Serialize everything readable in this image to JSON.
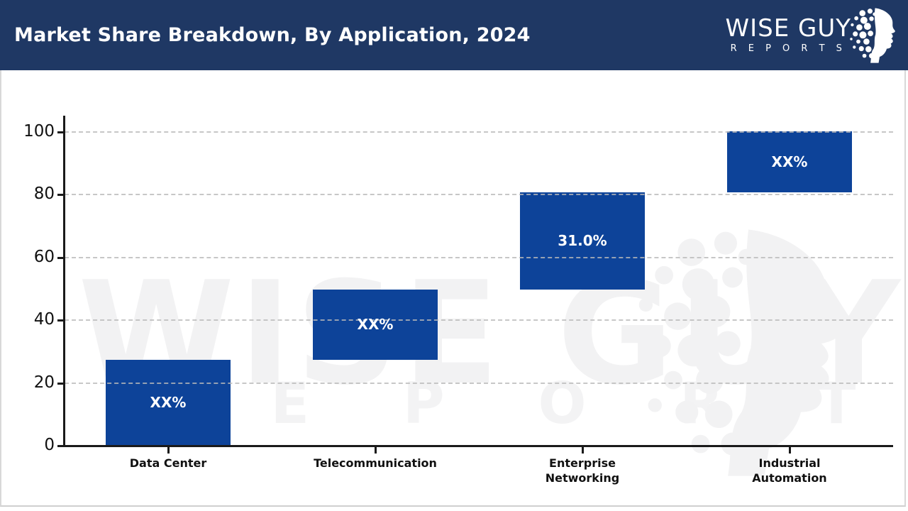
{
  "header": {
    "title": "Market Share Breakdown, By Application, 2024",
    "logo": {
      "primary": "WISE GUY",
      "secondary": "R E P O R T S"
    }
  },
  "watermark": {
    "primary": "WISE GUY",
    "secondary": "REPORTS"
  },
  "colors": {
    "header_bg": "#1F3864",
    "bar": "#0D4399",
    "title_text": "#FFFFFF",
    "axis": "#1A1A1A",
    "grid": "#D9D9D9",
    "watermark": "#F2F2F3"
  },
  "chart_data": {
    "type": "bar",
    "subtype": "waterfall-stacked-percentage",
    "title": "Market Share Breakdown, By Application, 2024",
    "categories": [
      "Data Center",
      "Telecommunication",
      "Enterprise Networking",
      "Industrial Automation"
    ],
    "category_label_lines": [
      [
        "Data Center"
      ],
      [
        "Telecommunication"
      ],
      [
        "Enterprise",
        "Networking"
      ],
      [
        "Industrial",
        "Automation"
      ]
    ],
    "segments": [
      {
        "category": "Data Center",
        "start": 0,
        "end": 27.2,
        "value_label": "XX%"
      },
      {
        "category": "Telecommunication",
        "start": 27.2,
        "end": 49.6,
        "value_label": "XX%"
      },
      {
        "category": "Enterprise Networking",
        "start": 49.6,
        "end": 80.6,
        "value_label": "31.0%"
      },
      {
        "category": "Industrial Automation",
        "start": 80.6,
        "end": 100,
        "value_label": "XX%"
      }
    ],
    "yticks": [
      0,
      20,
      40,
      60,
      80,
      100
    ],
    "ylim": [
      0,
      105
    ],
    "xlabel": "",
    "ylabel": "",
    "grid": "horizontal-dashed",
    "legend": "none",
    "bar_color": "#0D4399"
  }
}
